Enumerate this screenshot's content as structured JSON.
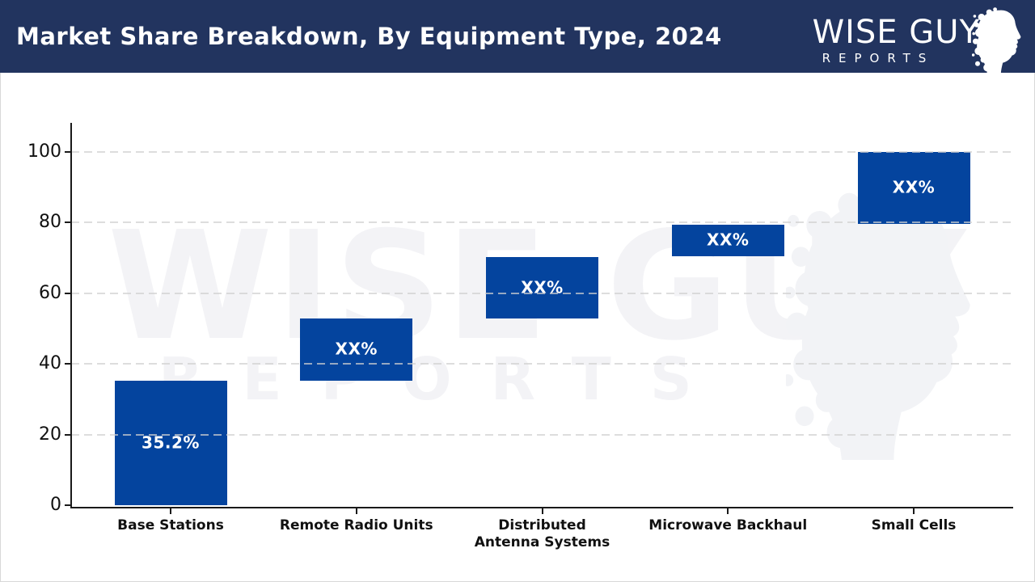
{
  "header": {
    "title": "Market Share Breakdown, By Equipment Type, 2024",
    "logo": {
      "line1": "WISE GUY",
      "line2": "REPORTS"
    }
  },
  "watermark": {
    "line1": "WISE GUY",
    "line2": "REPORTS"
  },
  "colors": {
    "header_bg": "#22345f",
    "bar": "#04449e",
    "bar_label_text": "#ffffff",
    "gridline": "#d9d9d9",
    "axis": "#1a1a1a",
    "watermark": "#f3f3f6",
    "page_border": "#d8d8d8"
  },
  "chart_data": {
    "type": "bar",
    "subtype": "waterfall",
    "title": "Market Share Breakdown, By Equipment Type, 2024",
    "xlabel": "",
    "ylabel": "",
    "ylim": [
      0,
      105
    ],
    "yticks": [
      0,
      20,
      40,
      60,
      80,
      100
    ],
    "grid": "horizontal dashed, drawn over bars",
    "legend": "none",
    "categories": [
      "Base Stations",
      "Remote Radio Units",
      "Distributed Antenna Systems",
      "Microwave Backhaul",
      "Small Cells"
    ],
    "bars": [
      {
        "category": "Base Stations",
        "start": 0,
        "end": 35.2,
        "label": "35.2%",
        "axis_label_lines": [
          "Base Stations"
        ]
      },
      {
        "category": "Remote Radio Units",
        "start": 35.2,
        "end": 52.9,
        "label": "XX%",
        "axis_label_lines": [
          "Remote Radio Units"
        ]
      },
      {
        "category": "Distributed Antenna Systems",
        "start": 52.9,
        "end": 70.1,
        "label": "XX%",
        "axis_label_lines": [
          "Distributed",
          "Antenna Systems"
        ]
      },
      {
        "category": "Microwave Backhaul",
        "start": 70.5,
        "end": 79.3,
        "label": "XX%",
        "axis_label_lines": [
          "Microwave Backhaul"
        ]
      },
      {
        "category": "Small Cells",
        "start": 79.5,
        "end": 100,
        "label": "XX%",
        "axis_label_lines": [
          "Small Cells"
        ]
      }
    ]
  }
}
